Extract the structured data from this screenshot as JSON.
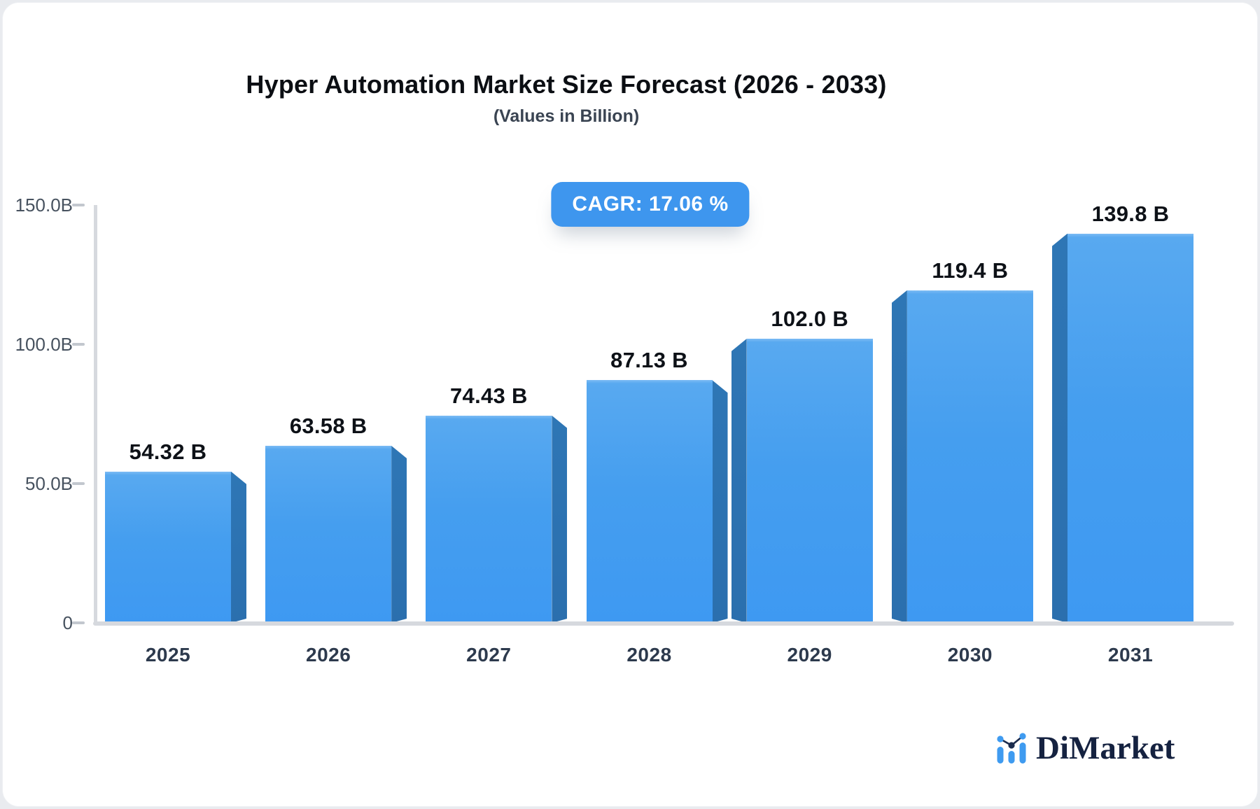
{
  "title": "Hyper Automation Market Size Forecast (2026 - 2033)",
  "subtitle": "(Values in Billion)",
  "badge": {
    "label": "CAGR: 17.06 %"
  },
  "logo": {
    "text": "DiMarket",
    "icon": "bar-line-chart-icon"
  },
  "chart_data": {
    "type": "bar",
    "title": "Hyper Automation Market Size Forecast (2026 - 2033)",
    "subtitle": "(Values in Billion)",
    "cagr_percent": 17.06,
    "categories": [
      "2025",
      "2026",
      "2027",
      "2028",
      "2029",
      "2030",
      "2031"
    ],
    "values": [
      54.32,
      63.58,
      74.43,
      87.13,
      102.0,
      119.4,
      139.8
    ],
    "value_labels": [
      "54.32 B",
      "63.58 B",
      "74.43 B",
      "87.13 B",
      "102.0 B",
      "119.4 B",
      "139.8 B"
    ],
    "xlabel": "",
    "ylabel": "",
    "ylim": [
      0,
      150
    ],
    "yticks": [
      {
        "label": "150.0B",
        "value": 150
      },
      {
        "label": "100.0B",
        "value": 100
      },
      {
        "label": "50.0B",
        "value": 50
      },
      {
        "label": "0",
        "value": 0
      }
    ],
    "grid": false,
    "legend": false,
    "bar_style": "3d-bevel",
    "depth_side": [
      "right",
      "right",
      "right",
      "right",
      "left",
      "left",
      "left"
    ],
    "colors": {
      "bar_face_top": "#58a9f0",
      "bar_face_bottom": "#3e99f2",
      "bar_side": "#2d74b4",
      "axis": "#d6d9de",
      "badge_bg": "#3e96ee",
      "badge_text": "#ffffff",
      "tick_text": "#47525f",
      "category_text": "#2d3a4d",
      "value_text": "#0d1117",
      "logo_blue": "#3f9bf0",
      "logo_navy": "#152240"
    }
  }
}
